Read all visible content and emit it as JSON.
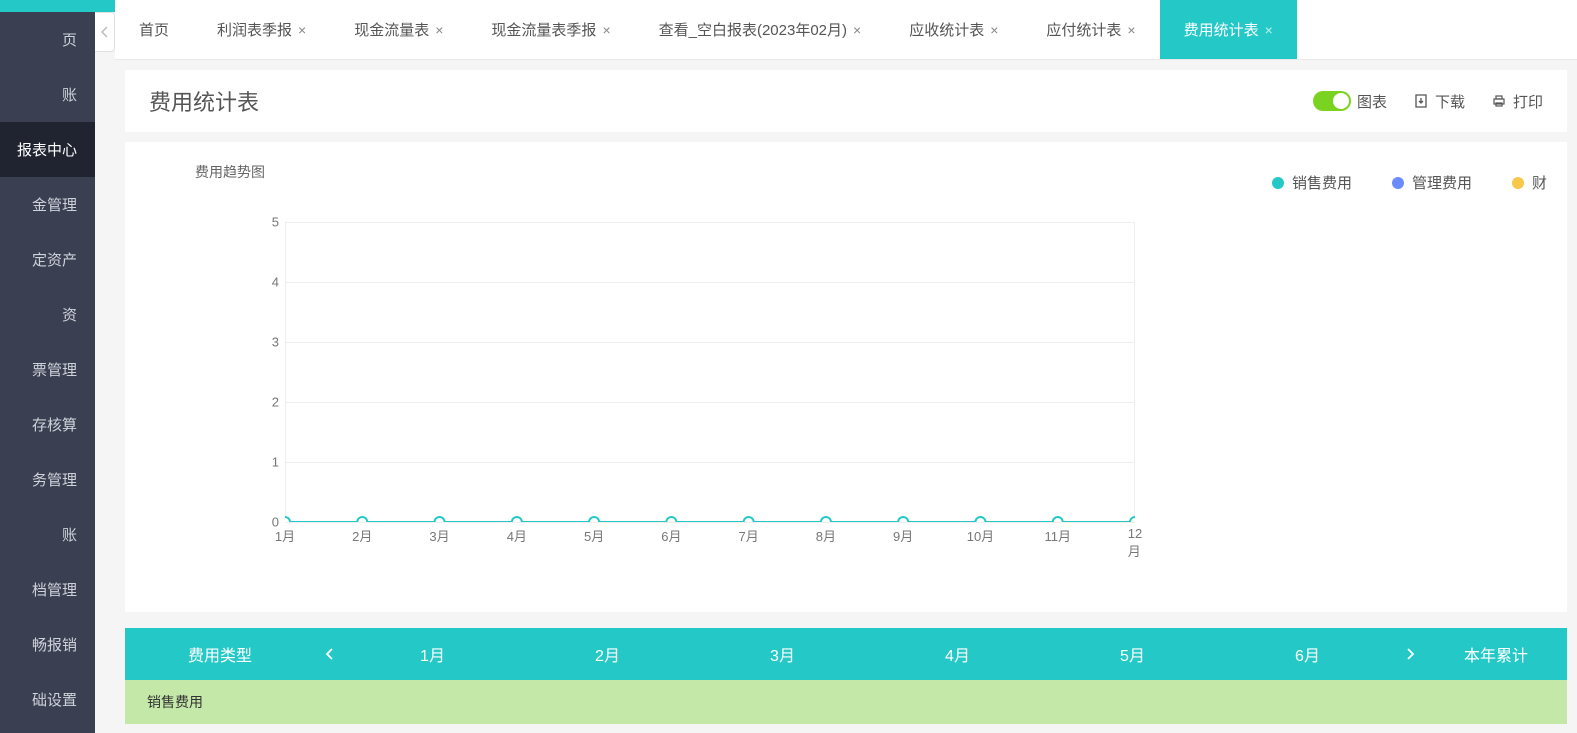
{
  "colors": {
    "teal": "#24c9c7",
    "sidebar_bg": "#3a3f51",
    "sidebar_active_bg": "#1f2430",
    "row_highlight": "#c3e8a8",
    "toggle_on": "#7bd321",
    "grid": "#eeeeee",
    "axis_text": "#777777",
    "legend_sales": "#24c9c7",
    "legend_mgmt": "#6b8cff",
    "legend_fin": "#f8c84b"
  },
  "sidebar": {
    "items": [
      {
        "label": "页",
        "active": false
      },
      {
        "label": "账",
        "active": false
      },
      {
        "label": "报表中心",
        "active": true
      },
      {
        "label": "金管理",
        "active": false
      },
      {
        "label": "定资产",
        "active": false
      },
      {
        "label": "资",
        "active": false
      },
      {
        "label": "票管理",
        "active": false
      },
      {
        "label": "存核算",
        "active": false
      },
      {
        "label": "务管理",
        "active": false
      },
      {
        "label": "账",
        "active": false
      },
      {
        "label": "档管理",
        "active": false
      },
      {
        "label": "畅报销",
        "active": false
      },
      {
        "label": "础设置",
        "active": false
      }
    ]
  },
  "tabs": [
    {
      "label": "首页",
      "closable": false,
      "active": false
    },
    {
      "label": "利润表季报",
      "closable": true,
      "active": false
    },
    {
      "label": "现金流量表",
      "closable": true,
      "active": false
    },
    {
      "label": "现金流量表季报",
      "closable": true,
      "active": false
    },
    {
      "label": "查看_空白报表(2023年02月)",
      "closable": true,
      "active": false
    },
    {
      "label": "应收统计表",
      "closable": true,
      "active": false
    },
    {
      "label": "应付统计表",
      "closable": true,
      "active": false
    },
    {
      "label": "费用统计表",
      "closable": true,
      "active": true
    }
  ],
  "page": {
    "title": "费用统计表",
    "actions": {
      "toggle_label": "图表",
      "toggle_on": true,
      "download": "下载",
      "print": "打印"
    }
  },
  "chart": {
    "type": "line",
    "title": "费用趋势图",
    "legend": [
      {
        "label": "销售费用",
        "color": "#24c9c7"
      },
      {
        "label": "管理费用",
        "color": "#6b8cff"
      },
      {
        "label": "财",
        "color": "#f8c84b"
      }
    ],
    "x_labels": [
      "1月",
      "2月",
      "3月",
      "4月",
      "5月",
      "6月",
      "7月",
      "8月",
      "9月",
      "10月",
      "11月",
      "12月"
    ],
    "y_ticks": [
      0,
      1,
      2,
      3,
      4,
      5
    ],
    "ylim": [
      0,
      5
    ],
    "series": [
      {
        "name": "销售费用",
        "color": "#24c9c7",
        "values": [
          0,
          0,
          0,
          0,
          0,
          0,
          0,
          0,
          0,
          0,
          0,
          0
        ],
        "marker": "circle",
        "marker_size": 5,
        "line_width": 2
      }
    ],
    "grid_color": "#eeeeee",
    "background_color": "#ffffff"
  },
  "table": {
    "type_header": "费用类型",
    "month_headers": [
      "1月",
      "2月",
      "3月",
      "4月",
      "5月",
      "6月"
    ],
    "total_header": "本年累计",
    "rows": [
      {
        "type": "销售费用",
        "values": [
          "",
          "",
          "",
          "",
          "",
          ""
        ],
        "highlight": true
      }
    ]
  }
}
